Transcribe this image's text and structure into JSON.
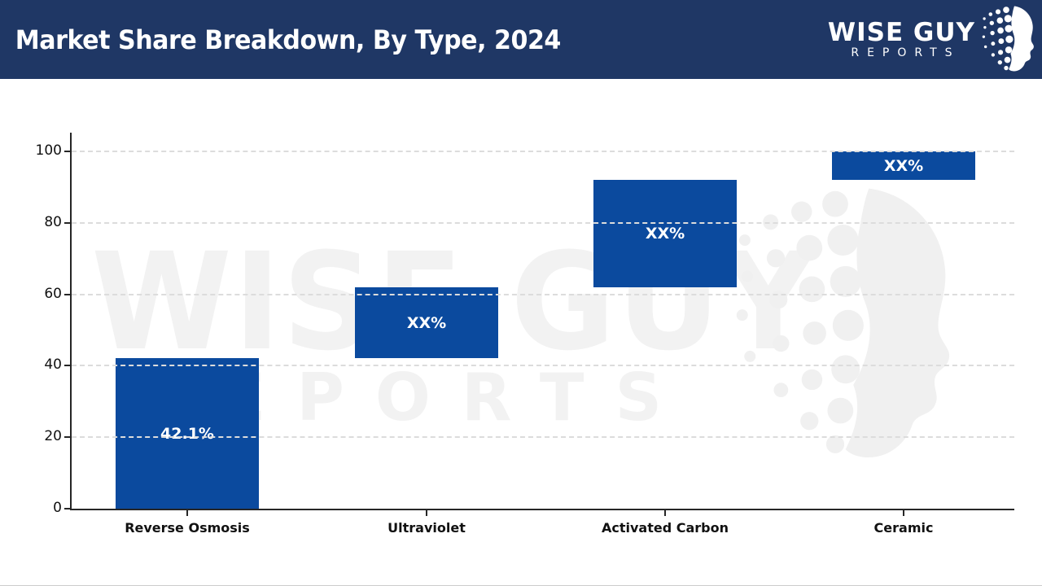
{
  "header": {
    "title": "Market Share Breakdown, By Type, 2024",
    "logo": {
      "name": "WISE GUY",
      "sub": "REPORTS"
    }
  },
  "watermark": {
    "name": "WISE GUY",
    "sub": "REPORTS"
  },
  "chart_data": {
    "type": "bar",
    "subtype": "waterfall",
    "title": "Market Share Breakdown, By Type, 2024",
    "xlabel": "",
    "ylabel": "",
    "ylim": [
      0,
      100
    ],
    "yticks": [
      0,
      20,
      40,
      60,
      80,
      100
    ],
    "grid": true,
    "grid_style": "dashed",
    "legend": "none",
    "bar_color": "#0b4a9e",
    "label_color": "#ffffff",
    "categories": [
      "Reverse Osmosis",
      "Ultraviolet",
      "Activated Carbon",
      "Ceramic"
    ],
    "segments": [
      {
        "category": "Reverse Osmosis",
        "start": 0,
        "end": 42.1,
        "value": 42.1,
        "label": "42.1%"
      },
      {
        "category": "Ultraviolet",
        "start": 42.1,
        "end": 62.0,
        "value": 19.9,
        "label": "XX%"
      },
      {
        "category": "Activated Carbon",
        "start": 62.0,
        "end": 92.0,
        "value": 30.0,
        "label": "XX%"
      },
      {
        "category": "Ceramic",
        "start": 92.0,
        "end": 100.0,
        "value": 8.0,
        "label": "XX%"
      }
    ]
  },
  "colors": {
    "header_bg": "#1f3765",
    "bar": "#0b4a9e",
    "gridline": "#dcdcdc",
    "axis": "#262626",
    "watermark": "#f2f2f2"
  }
}
